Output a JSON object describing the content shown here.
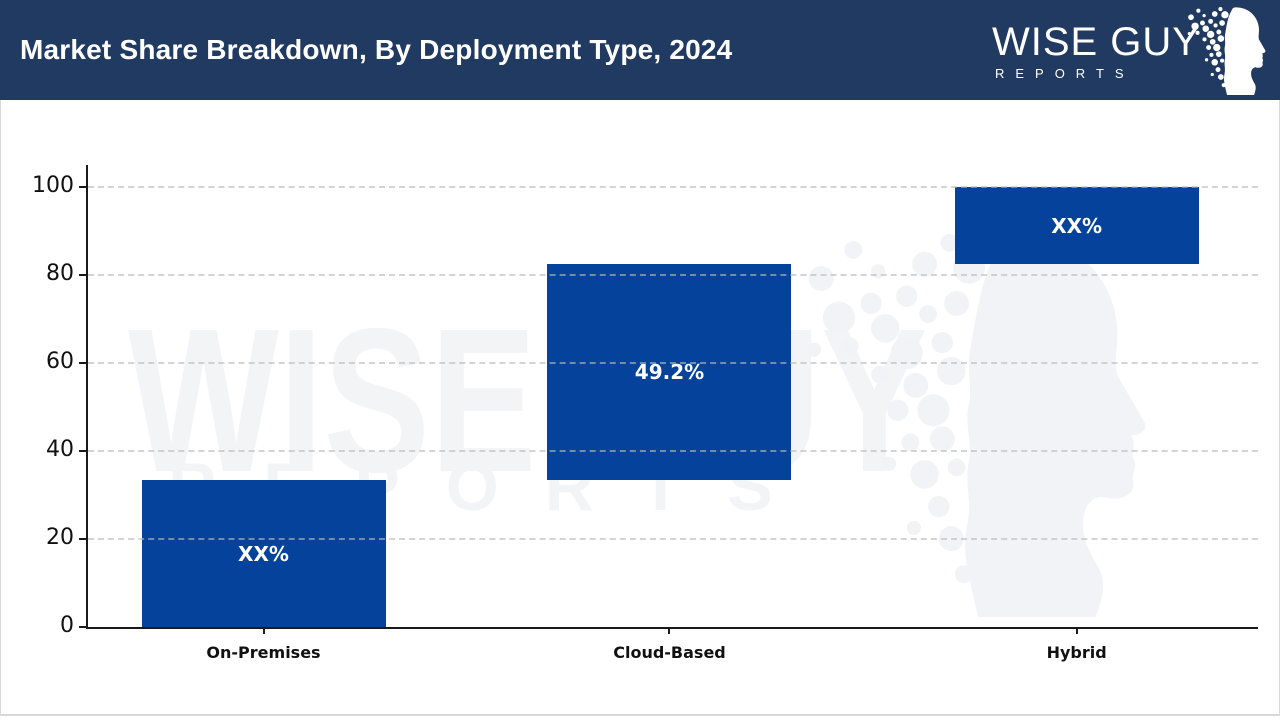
{
  "header": {
    "title": "Market Share Breakdown, By Deployment Type, 2024",
    "logo": {
      "line1": "WISE GUY",
      "line2": "REPORTS"
    }
  },
  "watermark": {
    "line1": "WISE GUY",
    "line2": "REPORTS"
  },
  "chart_data": {
    "type": "bar",
    "subtype": "floating-waterfall-segments",
    "title": "Market Share Breakdown, By Deployment Type, 2024",
    "categories": [
      "On-Premises",
      "Cloud-Based",
      "Hybrid"
    ],
    "bars": [
      {
        "category": "On-Premises",
        "start": 0,
        "end": 33.3,
        "label": "XX%"
      },
      {
        "category": "Cloud-Based",
        "start": 33.3,
        "end": 82.5,
        "label": "49.2%"
      },
      {
        "category": "Hybrid",
        "start": 82.5,
        "end": 100,
        "label": "XX%"
      }
    ],
    "xlabel": "",
    "ylabel": "",
    "yticks": [
      0,
      20,
      40,
      60,
      80,
      100
    ],
    "ylim": [
      0,
      105
    ],
    "grid": "horizontal-dashed",
    "legend": "none",
    "bar_color": "#04429B",
    "value_label_color": "#ffffff",
    "header_color": "#203A62",
    "axis_color": "#1a1a1a",
    "gridline_color": "#b9b9b9"
  }
}
